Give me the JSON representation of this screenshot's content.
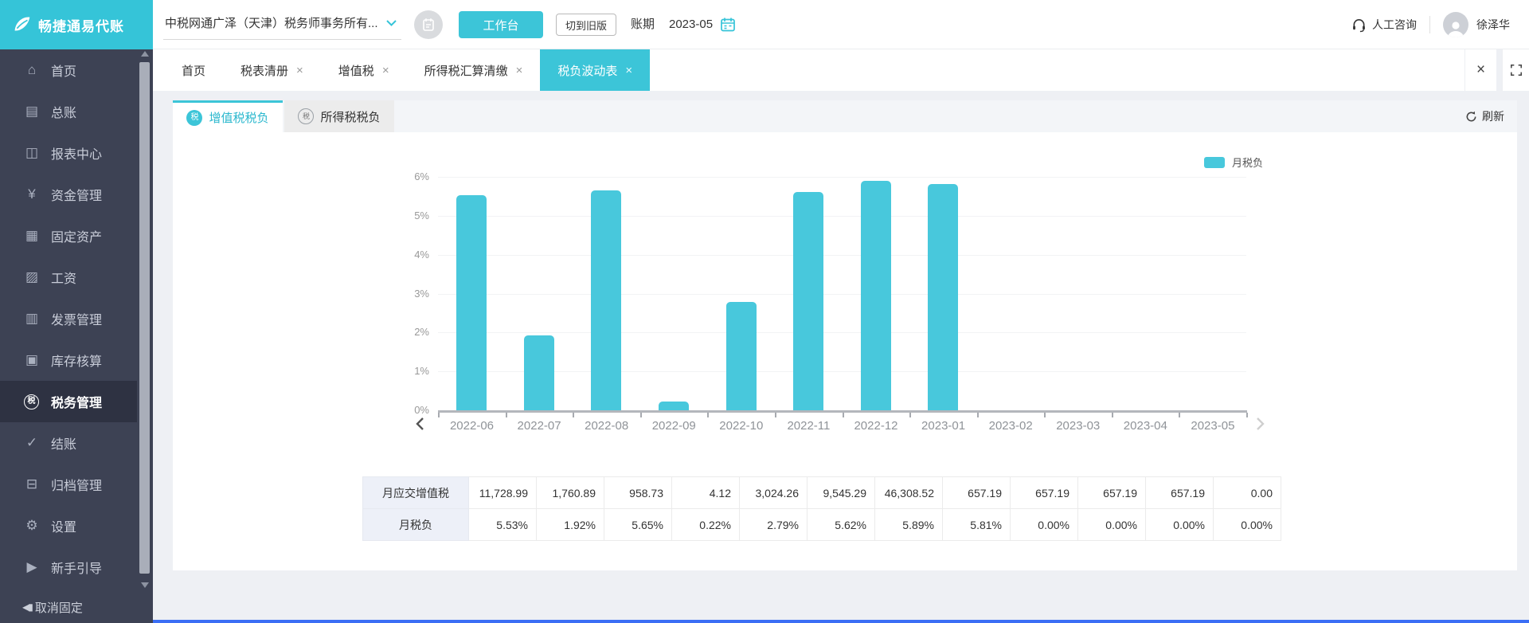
{
  "brand": {
    "logo_text": "畅捷通易代账"
  },
  "header": {
    "company": "中税网通广泽（天津）税务师事务所有...",
    "workbench_label": "工作台",
    "switch_old_label": "切到旧版",
    "period_label": "账期",
    "period_value": "2023-05",
    "support_label": "人工咨询",
    "user_name": "徐泽华"
  },
  "sidebar": {
    "items": [
      {
        "id": "home",
        "label": "首页",
        "icon": "home-icon",
        "active": false
      },
      {
        "id": "general-ledger",
        "label": "总账",
        "icon": "ledger-icon",
        "active": false
      },
      {
        "id": "report-center",
        "label": "报表中心",
        "icon": "reports-icon",
        "active": false
      },
      {
        "id": "funds",
        "label": "资金管理",
        "icon": "funds-icon",
        "active": false
      },
      {
        "id": "fixed-assets",
        "label": "固定资产",
        "icon": "assets-icon",
        "active": false
      },
      {
        "id": "payroll",
        "label": "工资",
        "icon": "payroll-icon",
        "active": false
      },
      {
        "id": "invoices",
        "label": "发票管理",
        "icon": "invoice-icon",
        "active": false
      },
      {
        "id": "inventory",
        "label": "库存核算",
        "icon": "inventory-icon",
        "active": false
      },
      {
        "id": "tax",
        "label": "税务管理",
        "icon": "tax-icon",
        "active": true
      },
      {
        "id": "closing",
        "label": "结账",
        "icon": "closing-icon",
        "active": false
      },
      {
        "id": "archive",
        "label": "归档管理",
        "icon": "archive-icon",
        "active": false
      },
      {
        "id": "settings",
        "label": "设置",
        "icon": "settings-icon",
        "active": false
      },
      {
        "id": "guide",
        "label": "新手引导",
        "icon": "guide-icon",
        "active": false
      }
    ],
    "unpin_label": "取消固定"
  },
  "tabs": [
    {
      "id": "home",
      "label": "首页",
      "closable": false,
      "active": false
    },
    {
      "id": "tax-register",
      "label": "税表清册",
      "closable": true,
      "active": false
    },
    {
      "id": "vat",
      "label": "增值税",
      "closable": true,
      "active": false
    },
    {
      "id": "income-tax-settlement",
      "label": "所得税汇算清缴",
      "closable": true,
      "active": false
    },
    {
      "id": "tax-burden-chart",
      "label": "税负波动表",
      "closable": true,
      "active": true
    }
  ],
  "subtabs": [
    {
      "id": "vat-burden",
      "label": "增值税税负",
      "active": true
    },
    {
      "id": "income-tax-burden",
      "label": "所得税税负",
      "active": false
    }
  ],
  "toolbar": {
    "refresh_label": "刷新"
  },
  "chart_data": {
    "type": "bar",
    "legend": [
      "月税负"
    ],
    "legend_position": "top-right",
    "categories": [
      "2022-06",
      "2022-07",
      "2022-08",
      "2022-09",
      "2022-10",
      "2022-11",
      "2022-12",
      "2023-01",
      "2023-02",
      "2023-03",
      "2023-04",
      "2023-05"
    ],
    "series": [
      {
        "name": "月税负",
        "values": [
          5.53,
          1.92,
          5.65,
          0.22,
          2.79,
          5.62,
          5.89,
          5.81,
          0.0,
          0.0,
          0.0,
          0.0
        ],
        "unit": "%"
      }
    ],
    "ylim": [
      0,
      6
    ],
    "ytick_labels": [
      "0%",
      "1%",
      "2%",
      "3%",
      "4%",
      "5%",
      "6%"
    ],
    "grid": true,
    "bar_color": "#48c8dc"
  },
  "table": {
    "rows": [
      {
        "label": "月应交增值税",
        "values": [
          "11,728.99",
          "1,760.89",
          "958.73",
          "4.12",
          "3,024.26",
          "9,545.29",
          "46,308.52",
          "657.19",
          "657.19",
          "657.19",
          "657.19",
          "0.00"
        ]
      },
      {
        "label": "月税负",
        "values": [
          "5.53%",
          "1.92%",
          "5.65%",
          "0.22%",
          "2.79%",
          "5.62%",
          "5.89%",
          "5.81%",
          "0.00%",
          "0.00%",
          "0.00%",
          "0.00%"
        ]
      }
    ]
  },
  "colors": {
    "accent": "#3cc5d8",
    "bar": "#48c8dc",
    "sidebar_bg": "#3d4254",
    "sidebar_active_bg": "#2e3242",
    "bottom_line": "#3b6ef5"
  }
}
